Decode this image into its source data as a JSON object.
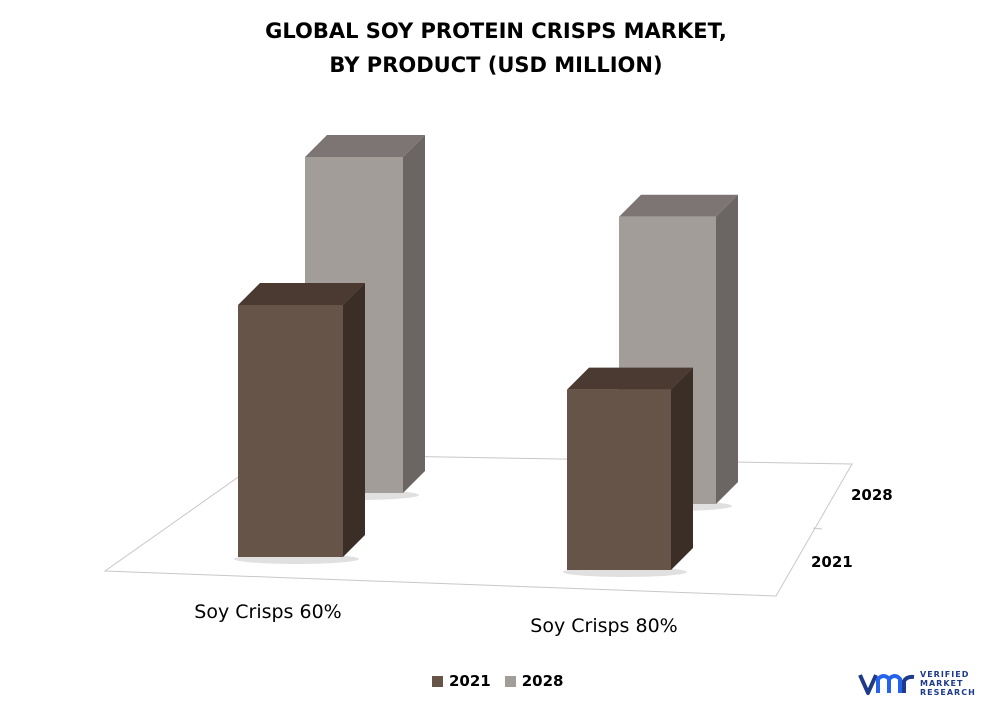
{
  "title_line1": "GLOBAL SOY PROTEIN CRISPS MARKET,",
  "title_line2": "BY PRODUCT (USD MILLION)",
  "colors": {
    "s2021_front": "#675448",
    "s2021_top": "#4a3a31",
    "s2021_side": "#3b2e27",
    "s2028_front": "#a39d9a",
    "s2028_top": "#7d7573",
    "s2028_side": "#6b6564"
  },
  "legend": [
    {
      "label": "2021",
      "color": "#675448"
    },
    {
      "label": "2028",
      "color": "#a39d9a"
    }
  ],
  "logo": {
    "line1": "VERIFIED",
    "line2": "MARKET",
    "line3": "RESEARCH",
    "color": "#1e3a8a"
  },
  "chart_data": {
    "type": "bar",
    "categories": [
      "Soy Crisps 60%",
      "Soy Crisps 80%"
    ],
    "depth_labels": [
      "2021",
      "2028"
    ],
    "series": [
      {
        "name": "2021",
        "values": [
          7.5,
          5.4
        ]
      },
      {
        "name": "2028",
        "values": [
          10.0,
          8.6
        ]
      }
    ],
    "ylim": [
      0,
      10
    ],
    "grid": false,
    "legend_position": "bottom",
    "projection": "3d"
  }
}
